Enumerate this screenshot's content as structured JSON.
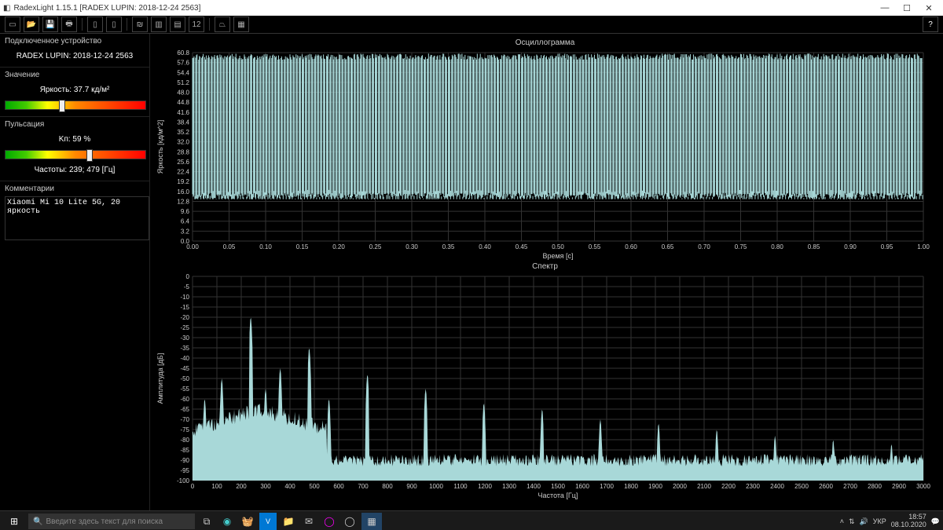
{
  "app": {
    "title": "RadexLight 1.15.1 [RADEX LUPIN: 2018-12-24 2563]"
  },
  "toolbar": {
    "icons": [
      "new",
      "open",
      "save",
      "print",
      "sep",
      "doc",
      "doc2",
      "sep",
      "wave",
      "bars",
      "bars2",
      "num",
      "sep",
      "chart",
      "grid"
    ]
  },
  "side": {
    "device_label": "Подключенное устройство",
    "device_value": "RADEX LUPIN: 2018-12-24 2563",
    "value_label": "Значение",
    "brightness_label": "Яркость: 37.7 кд/м²",
    "brightness_marker_pct": 38,
    "pulsation_label": "Пульсация",
    "kp_label": "Kп: 59 %",
    "kp_marker_pct": 58,
    "freq_label": "Частоты: 239; 479 [Гц]",
    "comments_label": "Комментарии",
    "comments_value": "Xiaomi Mi 10 Lite 5G, 20 яркость"
  },
  "oscillogram": {
    "title": "Осциллограмма",
    "ylabel": "Яркость [кд/м^2]",
    "xlabel": "Время [с]",
    "ymin": 0,
    "ymax": 60.8,
    "yticks": [
      0,
      3.2,
      6.4,
      9.6,
      12.8,
      16.0,
      19.2,
      22.4,
      25.6,
      28.8,
      32.0,
      35.2,
      38.4,
      41.6,
      44.8,
      48.0,
      51.2,
      54.4,
      57.6,
      60.8
    ],
    "xmin": 0,
    "xmax": 1.0,
    "xticks": [
      0.0,
      0.05,
      0.1,
      0.15,
      0.2,
      0.25,
      0.3,
      0.35,
      0.4,
      0.45,
      0.5,
      0.55,
      0.6,
      0.65,
      0.7,
      0.75,
      0.8,
      0.85,
      0.9,
      0.95,
      1.0
    ],
    "signal_min": 13.5,
    "signal_max": 60.5,
    "signal_color": "#a8d8d8",
    "grid_color": "#333333",
    "bg_color": "#000000",
    "n_cycles": 240
  },
  "spectrum": {
    "title": "Спектр",
    "ylabel": "Амплитуда [дБ]",
    "xlabel": "Частота [Гц]",
    "ymin": -100,
    "ymax": 0,
    "yticks": [
      -100,
      -95,
      -90,
      -85,
      -80,
      -75,
      -70,
      -65,
      -60,
      -55,
      -50,
      -45,
      -40,
      -35,
      -30,
      -25,
      -20,
      -15,
      -10,
      -5,
      0
    ],
    "xmin": 0,
    "xmax": 3000,
    "xticks": [
      0,
      100,
      200,
      300,
      400,
      500,
      600,
      700,
      800,
      900,
      1000,
      1100,
      1200,
      1300,
      1400,
      1500,
      1600,
      1700,
      1800,
      1900,
      2000,
      2100,
      2200,
      2300,
      2400,
      2500,
      2600,
      2700,
      2800,
      2900,
      3000
    ],
    "fill_color": "#a8d8d8",
    "noise_floor": -90,
    "hump_start": 0,
    "hump_end": 550,
    "hump_level": -70,
    "peaks": [
      {
        "f": 50,
        "db": -60
      },
      {
        "f": 120,
        "db": -50
      },
      {
        "f": 239,
        "db": -20
      },
      {
        "f": 300,
        "db": -55
      },
      {
        "f": 360,
        "db": -45
      },
      {
        "f": 479,
        "db": -35
      },
      {
        "f": 560,
        "db": -60
      },
      {
        "f": 718,
        "db": -48
      },
      {
        "f": 957,
        "db": -55
      },
      {
        "f": 1196,
        "db": -62
      },
      {
        "f": 1435,
        "db": -65
      },
      {
        "f": 1674,
        "db": -70
      },
      {
        "f": 1913,
        "db": -72
      },
      {
        "f": 2152,
        "db": -75
      },
      {
        "f": 2391,
        "db": -78
      },
      {
        "f": 2630,
        "db": -80
      },
      {
        "f": 2869,
        "db": -82
      }
    ]
  },
  "taskbar": {
    "search_placeholder": "Введите здесь текст для поиска",
    "lang": "УКР",
    "time": "18:57",
    "date": "08.10.2020"
  }
}
